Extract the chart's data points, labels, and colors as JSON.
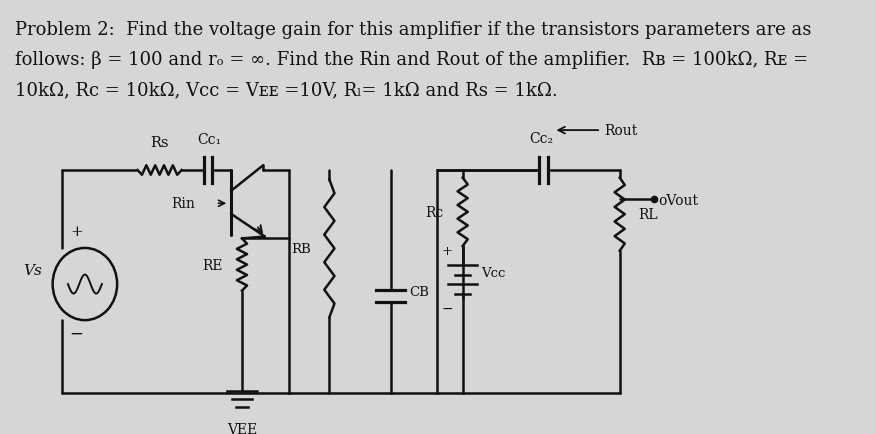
{
  "bg_color": "#d8d5d8",
  "line_color": "#111111",
  "text_color": "#111111",
  "line1": "Problem 2:  Find the voltage gain for this amplifier if the transistors parameters are as",
  "line2": "follows: β = 100 and rₒ = ∞. Find the Rin and Rout of the amplifier.  Rʙ = 100kΩ, Rᴇ =",
  "line3": "10kΩ, Rc = 10kΩ, Vcc = Vᴇᴇ =10V, Rₗ= 1kΩ and Rs = 1kΩ.",
  "font_size_text": 13.0,
  "circuit_bg": "#d8d5d8"
}
